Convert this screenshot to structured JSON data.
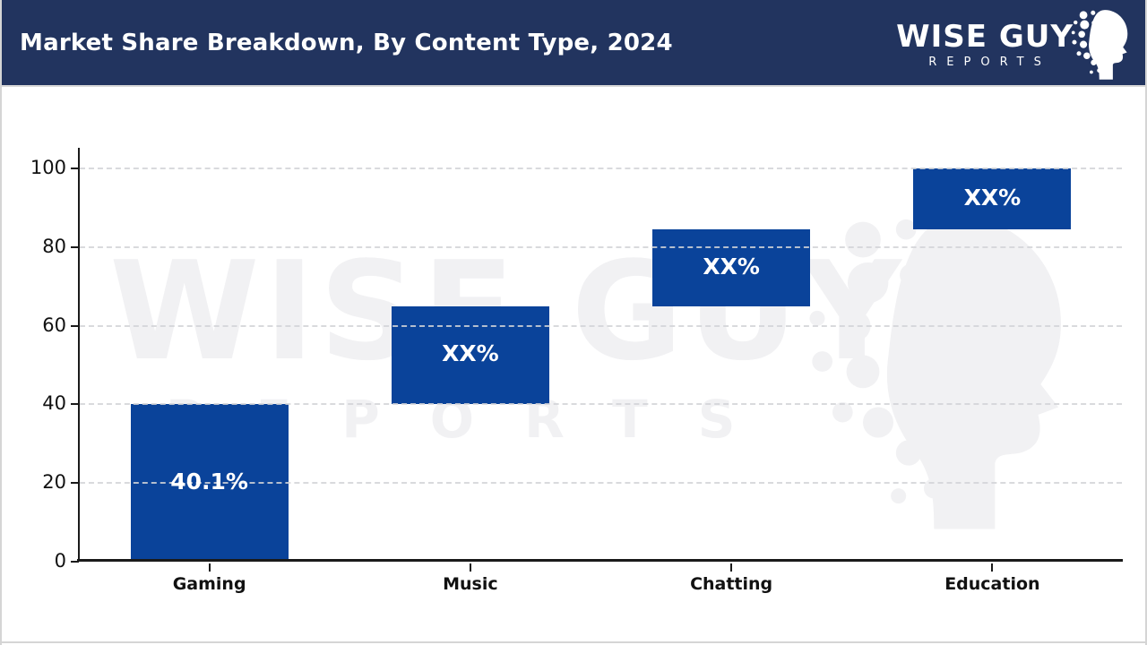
{
  "header": {
    "title": "Market Share Breakdown, By Content Type, 2024",
    "logo": {
      "brand_line1": "WISE GUY",
      "brand_line2": "REPORTS"
    }
  },
  "watermark": {
    "line1": "WISE GUY",
    "line2": "REPORTS"
  },
  "chart_data": {
    "type": "bar",
    "variant": "waterfall",
    "title": "Market Share Breakdown, By Content Type, 2024",
    "categories": [
      "Gaming",
      "Music",
      "Chatting",
      "Education"
    ],
    "segments": [
      {
        "category": "Gaming",
        "start": 0,
        "end": 40.1,
        "label": "40.1%"
      },
      {
        "category": "Music",
        "start": 40.1,
        "end": 65,
        "label": "XX%"
      },
      {
        "category": "Chatting",
        "start": 65,
        "end": 84.5,
        "label": "XX%"
      },
      {
        "category": "Education",
        "start": 84.5,
        "end": 100,
        "label": "XX%"
      }
    ],
    "yticks": [
      0,
      20,
      40,
      60,
      80,
      100
    ],
    "ylim": [
      0,
      105
    ],
    "xlabel": "",
    "ylabel": "",
    "grid": "horizontal-dashed",
    "legend": "none",
    "bar_color": "#0a439a",
    "bar_label_color": "#ffffff"
  },
  "colors": {
    "header_bg": "#22345f",
    "bar": "#0a439a",
    "axis": "#1a1a1a",
    "gridline": "#d9dbde",
    "watermark": "#f1f1f3",
    "tick_label": "#111111",
    "frame": "#d5d5d5"
  }
}
